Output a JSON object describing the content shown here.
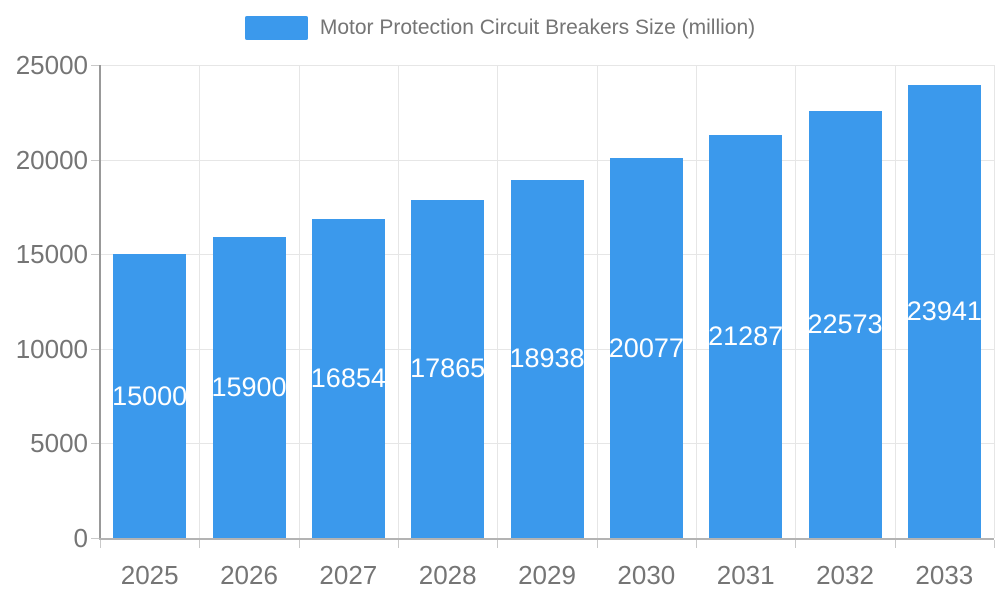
{
  "chart_data": {
    "type": "bar",
    "title": "",
    "legend": "Motor Protection Circuit Breakers Size (million)",
    "legend_position": "top-center",
    "categories": [
      "2025",
      "2026",
      "2027",
      "2028",
      "2029",
      "2030",
      "2031",
      "2032",
      "2033"
    ],
    "series": [
      {
        "name": "Motor Protection Circuit Breakers Size (million)",
        "values": [
          15000,
          15900,
          16854,
          17865,
          18938,
          20077,
          21287,
          22573,
          23941
        ]
      }
    ],
    "values": [
      15000,
      15900,
      16854,
      17865,
      18938,
      20077,
      21287,
      22573,
      23941
    ],
    "value_labels": [
      "15000",
      "15900",
      "16854",
      "17865",
      "18938",
      "20077",
      "21287",
      "22573",
      "23941"
    ],
    "xlabel": "",
    "ylabel": "",
    "ylim": [
      0,
      25000
    ],
    "y_ticks": [
      0,
      5000,
      10000,
      15000,
      20000,
      25000
    ],
    "y_tick_labels": [
      "0",
      "5000",
      "10000",
      "15000",
      "20000",
      "25000"
    ],
    "grid": true,
    "colors": {
      "bar": "#3B99EC",
      "value_label": "#FFFFFF",
      "axis_text": "#757575",
      "grid_line": "#E6E6E6",
      "y_axis_line": "#999999",
      "x_axis_line": "#B3B3B3",
      "tick_mark": "#C9C9C9",
      "background": "#FFFFFF"
    }
  }
}
